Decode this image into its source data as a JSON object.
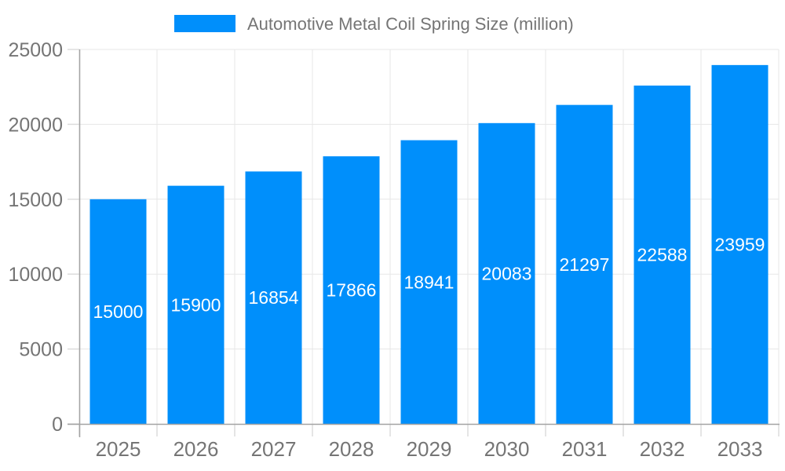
{
  "chart_data": {
    "type": "bar",
    "title": "Automotive Metal Coil Spring Size (million)",
    "categories": [
      "2025",
      "2026",
      "2027",
      "2028",
      "2029",
      "2030",
      "2031",
      "2032",
      "2033"
    ],
    "series": [
      {
        "name": "Automotive Metal Coil Spring Size (million)",
        "color": "#008FFB",
        "values": [
          15000,
          15900,
          16854,
          17866,
          18941,
          20083,
          21297,
          22588,
          23959
        ]
      }
    ],
    "xlabel": "",
    "ylabel": "",
    "ylim": [
      0,
      25000
    ],
    "yticks": [
      0,
      5000,
      10000,
      15000,
      20000,
      25000
    ],
    "grid": "on",
    "legend_position": "top-center",
    "data_labels": "white, centered inside bars"
  },
  "colors": {
    "bar": "#008FFB",
    "axis_text": "#757575",
    "data_label_text": "#ffffff",
    "grid_line": "#e7e7e7",
    "tick_line": "#dcdcdc",
    "axis_line": "#a3a3a3",
    "background": "#ffffff"
  }
}
